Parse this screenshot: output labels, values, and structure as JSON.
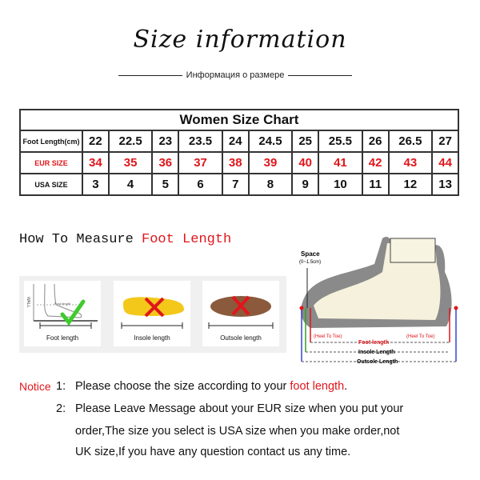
{
  "header": {
    "title": "Size information",
    "subtitle": "Информация о размере"
  },
  "size_chart": {
    "title": "Women Size Chart",
    "rows": [
      {
        "label": "Foot Length(cm)",
        "values": [
          "22",
          "22.5",
          "23",
          "23.5",
          "24",
          "24.5",
          "25",
          "25.5",
          "26",
          "26.5",
          "27"
        ]
      },
      {
        "label": "EUR SIZE",
        "values": [
          "34",
          "35",
          "36",
          "37",
          "38",
          "39",
          "40",
          "41",
          "42",
          "43",
          "44"
        ]
      },
      {
        "label": "USA SIZE",
        "values": [
          "3",
          "4",
          "5",
          "6",
          "7",
          "8",
          "9",
          "10",
          "11",
          "12",
          "13"
        ]
      }
    ],
    "accent_color": "#e0161b"
  },
  "measure": {
    "heading_prefix": "How To Measure ",
    "heading_highlight": "Foot Length",
    "cards": [
      {
        "caption": "Foot length",
        "icon": "check-icon",
        "wall_label": "WALL",
        "inner_label": "Foot length"
      },
      {
        "caption": "Insole length",
        "icon": "cross-icon"
      },
      {
        "caption": "Outsole length",
        "icon": "cross-icon"
      }
    ],
    "diagram": {
      "space_label": "Space",
      "space_range": "(0~1.5cm)",
      "heel_to_toe_left": "(Heel To Toe)",
      "heel_to_toe_right": "(Heel To Toe)",
      "foot_length": "Foot length",
      "insole_length": "Insole Length",
      "outsole_length": "Outsole Length"
    }
  },
  "notice": {
    "label": "Notice",
    "items": [
      {
        "num": "1:",
        "text": "Please choose the size according to your ",
        "highlight": "foot length",
        "tail": "."
      },
      {
        "num": "2:",
        "lines": [
          "Please Leave Message about your EUR size when you put your",
          "order,The size you select is USA size when you make order,not",
          "UK size,If you have any question  contact us any time."
        ]
      }
    ]
  }
}
